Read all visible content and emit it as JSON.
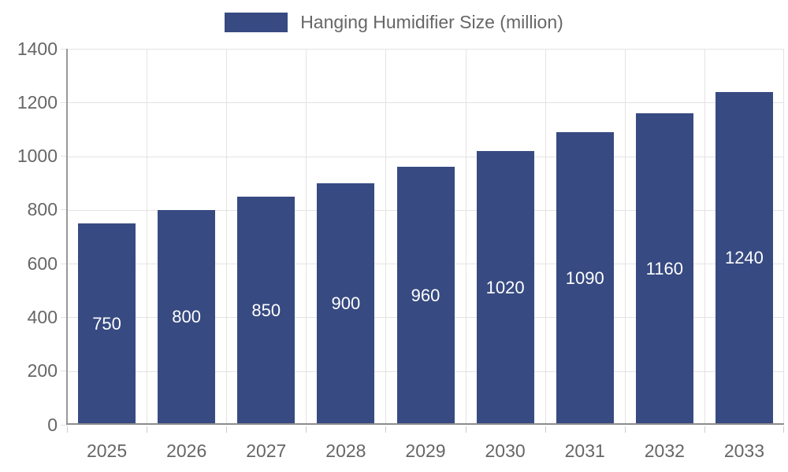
{
  "legend": {
    "label": "Hanging Humidifier Size (million)"
  },
  "colors": {
    "bar": "#374A81",
    "grid": "#E3E3E3",
    "y_axis": "#999999",
    "x_axis": "#8C8C8C",
    "tick": "#CCCCCC",
    "axis_label": "#666666",
    "value_label": "#FFFFFF",
    "background": "#FFFFFF"
  },
  "chart_data": {
    "type": "bar",
    "title": "",
    "series_name": "Hanging Humidifier Size (million)",
    "categories": [
      "2025",
      "2026",
      "2027",
      "2028",
      "2029",
      "2030",
      "2031",
      "2032",
      "2033"
    ],
    "values": [
      750,
      800,
      850,
      900,
      960,
      1020,
      1090,
      1160,
      1240
    ],
    "xlabel": "",
    "ylabel": "",
    "ylim": [
      0,
      1400
    ],
    "yticks": [
      0,
      200,
      400,
      600,
      800,
      1000,
      1200,
      1400
    ],
    "grid": true,
    "legend_position": "top-center",
    "value_label_position": "inside-center"
  }
}
